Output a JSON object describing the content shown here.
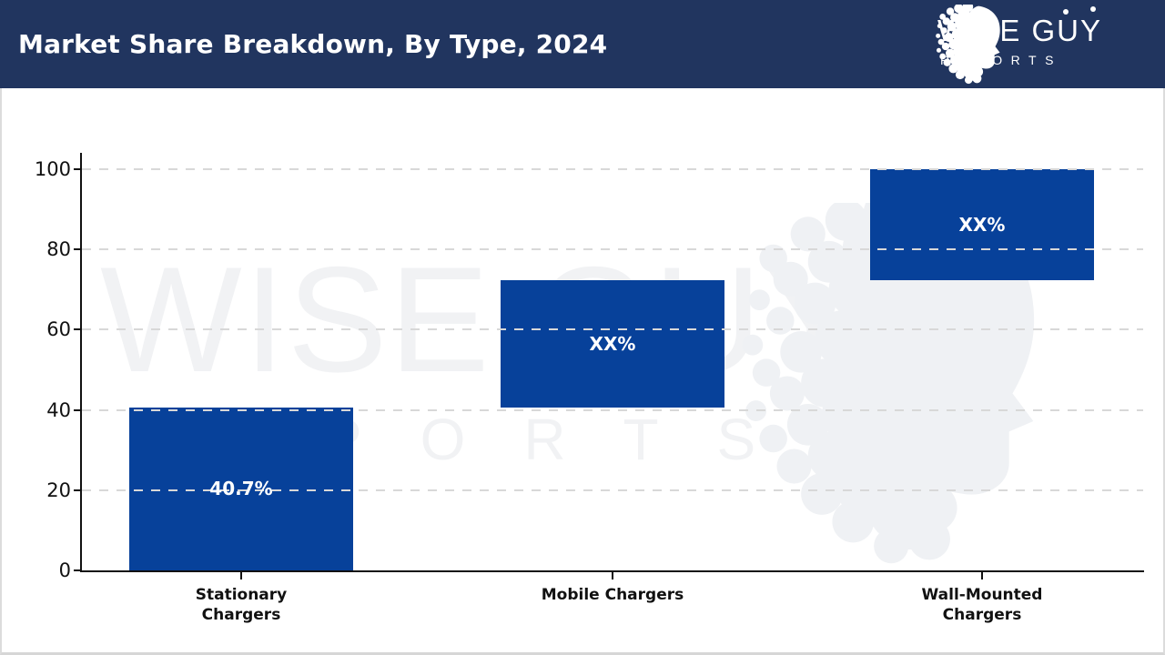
{
  "header": {
    "title": "Market Share Breakdown, By Type, 2024",
    "logo": {
      "wordmark": "WISE GUY",
      "subtext": "REPORTS"
    }
  },
  "watermark": {
    "line1": "WISE GUY",
    "line2": "REPORTS"
  },
  "chart_data": {
    "type": "bar",
    "subtype": "floating-segment-waterfall",
    "title": "Market Share Breakdown, By Type, 2024",
    "categories": [
      "Stationary\nChargers",
      "Mobile Chargers",
      "Wall-Mounted\nChargers"
    ],
    "segments": [
      {
        "category": "Stationary Chargers",
        "start": 0,
        "end": 40.7,
        "label": "40.7%"
      },
      {
        "category": "Mobile Chargers",
        "start": 40.7,
        "end": 72.3,
        "label": "XX%"
      },
      {
        "category": "Wall-Mounted Chargers",
        "start": 72.3,
        "end": 100,
        "label": "XX%"
      }
    ],
    "ylim": [
      0,
      100
    ],
    "yticks": [
      0,
      20,
      40,
      60,
      80,
      100
    ],
    "xlabel": "",
    "ylabel": "",
    "grid": "horizontal-dashed",
    "legend": "none",
    "colors": {
      "bar": "#07419a",
      "bar_label": "#ffffff",
      "grid": "#d8d8d8",
      "axis": "#111111",
      "tick_label": "#111111",
      "header_bg": "#21355f",
      "header_text": "#ffffff",
      "watermark": "#f1f2f4"
    }
  }
}
